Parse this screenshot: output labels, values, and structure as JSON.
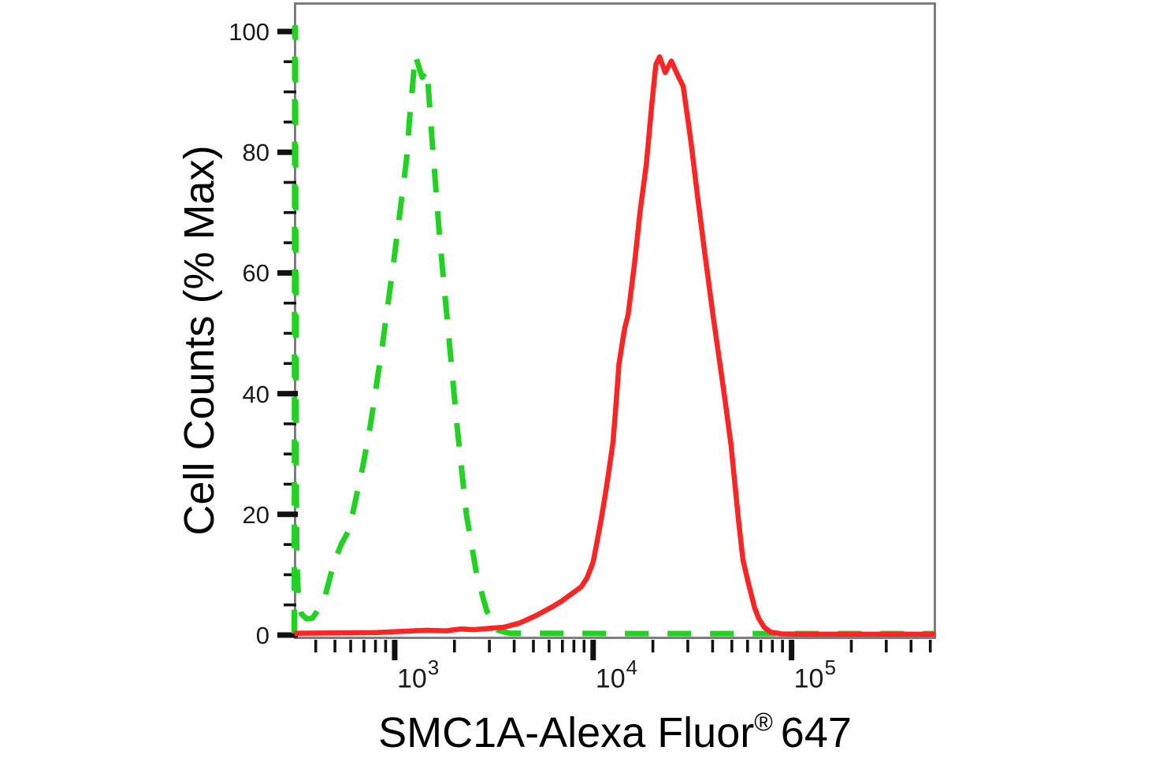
{
  "figure": {
    "background": "#ffffff"
  },
  "chart_data": {
    "type": "line",
    "title": "",
    "xlabel": {
      "text": "SMC1A-Alexa Fluor",
      "registered_mark": "®",
      "suffix": "647"
    },
    "ylabel": "Cell Counts (% Max)",
    "grid": false,
    "legend": false,
    "x_axis": {
      "scale": "log10",
      "range_log10": [
        2.492,
        5.728
      ],
      "major_ticks": [
        {
          "value": 1000,
          "base": "10",
          "exponent": "3"
        },
        {
          "value": 10000,
          "base": "10",
          "exponent": "4"
        },
        {
          "value": 100000,
          "base": "10",
          "exponent": "5"
        }
      ],
      "minor_ticks": "log-spaced multiples 2-9 of each decade"
    },
    "y_axis": {
      "range": [
        0,
        100
      ],
      "major_ticks": [
        0,
        20,
        40,
        60,
        80,
        100
      ],
      "minor_tick_step": 5
    },
    "frame_color": "#7d7d7d",
    "tick_color": "#111111",
    "series": [
      {
        "name": "green-dashed-histogram",
        "color": "#22d122",
        "line_style": "dashed",
        "stroke_width": 7,
        "dash_pattern": [
          30,
          24
        ],
        "peak": {
          "x_approx": 1270,
          "y_percent": 96
        },
        "points_logx_percent": [
          [
            2.494,
            0.3
          ],
          [
            2.4965,
            100.7
          ],
          [
            2.4995,
            100.7
          ],
          [
            2.503,
            30
          ],
          [
            2.507,
            12
          ],
          [
            2.515,
            6
          ],
          [
            2.53,
            3.5
          ],
          [
            2.555,
            2.7
          ],
          [
            2.585,
            2.8
          ],
          [
            2.615,
            4.2
          ],
          [
            2.65,
            6.5
          ],
          [
            2.69,
            11.6
          ],
          [
            2.73,
            15
          ],
          [
            2.77,
            17.4
          ],
          [
            2.798,
            21.7
          ],
          [
            2.84,
            28
          ],
          [
            2.877,
            34.7
          ],
          [
            2.937,
            47.8
          ],
          [
            2.996,
            62.1
          ],
          [
            3.036,
            72.6
          ],
          [
            3.06,
            79
          ],
          [
            3.075,
            85.6
          ],
          [
            3.09,
            91
          ],
          [
            3.103,
            96.1
          ],
          [
            3.139,
            92.4
          ],
          [
            3.163,
            93.7
          ],
          [
            3.186,
            83
          ],
          [
            3.226,
            66
          ],
          [
            3.274,
            49
          ],
          [
            3.313,
            35
          ],
          [
            3.361,
            20
          ],
          [
            3.413,
            10
          ],
          [
            3.464,
            4.0
          ],
          [
            3.52,
            0.8
          ],
          [
            3.58,
            0.3
          ],
          [
            4.2,
            0.25
          ],
          [
            4.8,
            0.25
          ],
          [
            5.72,
            0.25
          ]
        ]
      },
      {
        "name": "red-solid-histogram",
        "color": "#fa2525",
        "line_style": "solid",
        "stroke_width": 6.5,
        "dash_pattern": null,
        "peak": {
          "x_approx": 21600,
          "y_percent": 96
        },
        "points_logx_percent": [
          [
            2.494,
            0.3
          ],
          [
            2.9,
            0.4
          ],
          [
            3.03,
            0.6
          ],
          [
            3.16,
            0.8
          ],
          [
            3.26,
            0.7
          ],
          [
            3.33,
            1.0
          ],
          [
            3.4,
            0.9
          ],
          [
            3.47,
            1.1
          ],
          [
            3.55,
            1.3
          ],
          [
            3.63,
            2.0
          ],
          [
            3.71,
            3.2
          ],
          [
            3.79,
            4.6
          ],
          [
            3.84,
            5.6
          ],
          [
            3.94,
            8.0
          ],
          [
            3.97,
            9.5
          ],
          [
            4.0,
            12.1
          ],
          [
            4.02,
            15.5
          ],
          [
            4.04,
            19.1
          ],
          [
            4.06,
            23
          ],
          [
            4.08,
            27.3
          ],
          [
            4.1,
            32
          ],
          [
            4.11,
            36
          ],
          [
            4.12,
            40.3
          ],
          [
            4.13,
            44.8
          ],
          [
            4.148,
            48.7
          ],
          [
            4.16,
            51
          ],
          [
            4.176,
            53
          ],
          [
            4.21,
            62
          ],
          [
            4.236,
            70
          ],
          [
            4.268,
            78
          ],
          [
            4.296,
            88
          ],
          [
            4.316,
            94.5
          ],
          [
            4.335,
            95.8
          ],
          [
            4.363,
            93.2
          ],
          [
            4.394,
            95.1
          ],
          [
            4.43,
            92.5
          ],
          [
            4.454,
            90.9
          ],
          [
            4.493,
            81.7
          ],
          [
            4.525,
            73
          ],
          [
            4.56,
            64
          ],
          [
            4.604,
            53
          ],
          [
            4.656,
            41
          ],
          [
            4.695,
            31.5
          ],
          [
            4.731,
            19.5
          ],
          [
            4.755,
            12.5
          ],
          [
            4.783,
            8.5
          ],
          [
            4.814,
            4.5
          ],
          [
            4.834,
            2.8
          ],
          [
            4.862,
            1.3
          ],
          [
            4.894,
            0.5
          ],
          [
            4.95,
            0.2
          ],
          [
            5.1,
            0.15
          ],
          [
            5.725,
            0.15
          ]
        ]
      }
    ]
  }
}
